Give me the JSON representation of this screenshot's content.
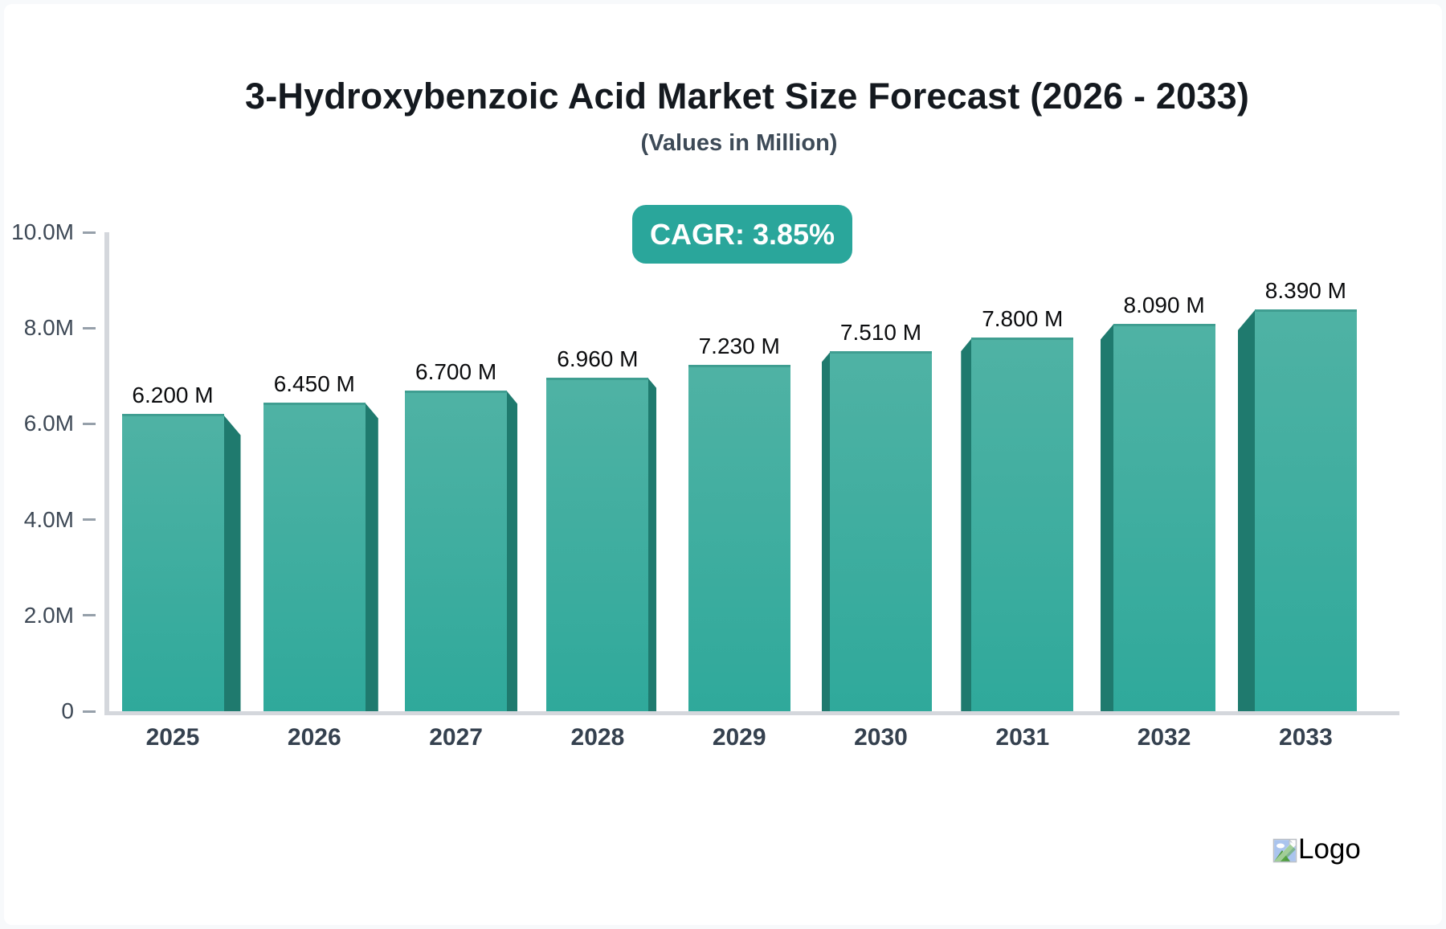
{
  "page": {
    "background": "#f7f9fb",
    "card_background": "#ffffff"
  },
  "header": {
    "title": "3-Hydroxybenzoic Acid Market Size Forecast (2026 - 2033)",
    "subtitle": "(Values in Million)"
  },
  "badge": {
    "label": "CAGR: 3.85%",
    "background": "#2aa69b",
    "text_color": "#ffffff"
  },
  "footer": {
    "logo_alt": "Logo"
  },
  "chart_data": {
    "type": "bar",
    "title": "3-Hydroxybenzoic Acid Market Size Forecast (2026 - 2033)",
    "subtitle": "(Values in Million)",
    "categories": [
      "2025",
      "2026",
      "2027",
      "2028",
      "2029",
      "2030",
      "2031",
      "2032",
      "2033"
    ],
    "values": [
      6.2,
      6.45,
      6.7,
      6.96,
      7.23,
      7.51,
      7.8,
      8.09,
      8.39
    ],
    "value_labels": [
      "6.200 M",
      "6.450 M",
      "6.700 M",
      "6.960 M",
      "7.230 M",
      "7.510 M",
      "7.800 M",
      "8.090 M",
      "8.390 M"
    ],
    "unit": "Million",
    "xlabel": "",
    "ylabel": "",
    "ylim": [
      0,
      10
    ],
    "y_ticks": [
      {
        "value": 0,
        "label": "0"
      },
      {
        "value": 2,
        "label": "2.0M"
      },
      {
        "value": 4,
        "label": "4.0M"
      },
      {
        "value": 6,
        "label": "6.0M"
      },
      {
        "value": 8,
        "label": "8.0M"
      },
      {
        "value": 10,
        "label": "10.0M"
      }
    ],
    "grid": false,
    "legend": "none",
    "colors": {
      "bar_face_top": "#4fb2a4",
      "bar_face_bottom": "#2fa99b",
      "bar_top_edge": "#3f9e91",
      "bar_side": "#1f7a6e",
      "axis_line": "#d4d7dc",
      "tick_dash": "#96a0aa",
      "tick_label": "#3e4956",
      "x_label": "#35414f",
      "value_label": "#0b0c0e"
    }
  }
}
